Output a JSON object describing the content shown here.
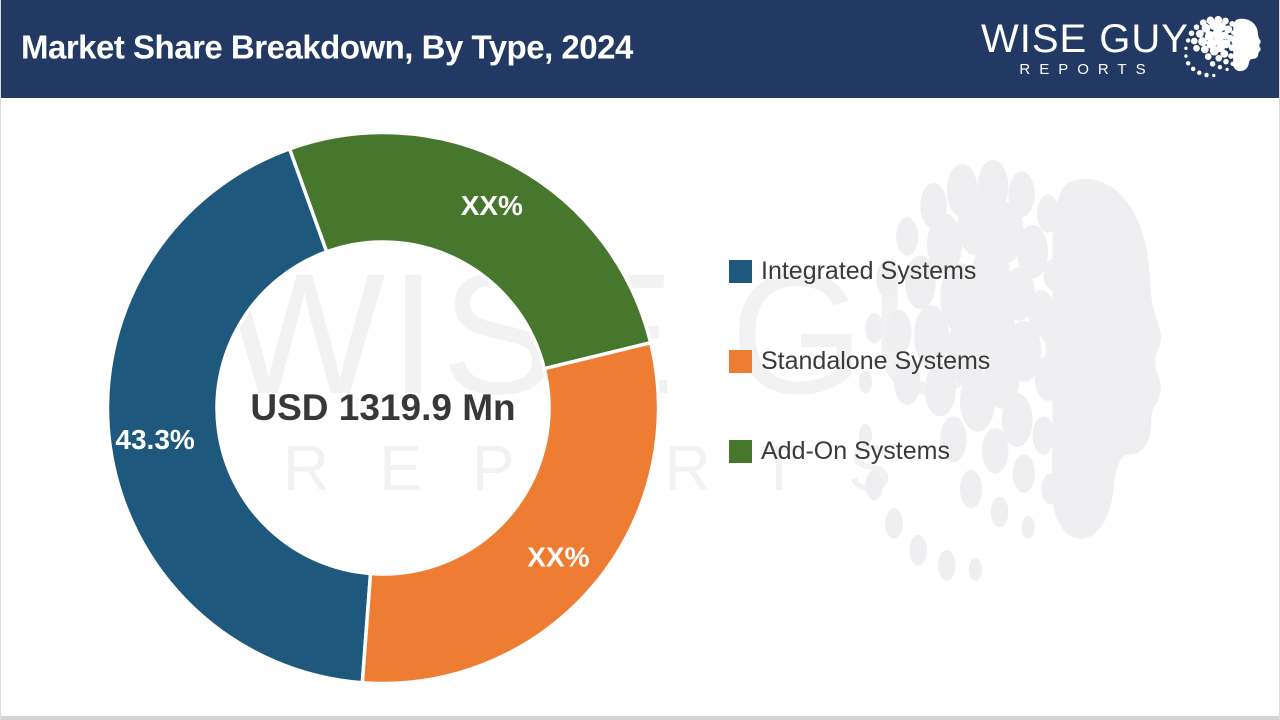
{
  "header": {
    "title": "Market Share Breakdown, By Type, 2024",
    "bg_color": "#223A63",
    "logo": {
      "line1": "WISE GUY",
      "line2": "REPORTS"
    }
  },
  "watermark": {
    "line1": "WISE GUY",
    "line2": "REPORTS"
  },
  "chart_data": {
    "type": "donut",
    "title": "Market Share Breakdown, By Type, 2024",
    "center_label": "USD 1319.9 Mn",
    "direction": "clockwise",
    "start_angle_deg": 184.3,
    "hole_ratio": 0.6,
    "legend_position": "right",
    "segments": [
      {
        "label": "Integrated Systems",
        "display": "43.3%",
        "value_pct": 43.3,
        "color": "#1F587D"
      },
      {
        "label": "Add-On Systems",
        "display": "XX%",
        "value_pct": 26.7,
        "color": "#47772C"
      },
      {
        "label": "Standalone Systems",
        "display": "XX%",
        "value_pct": 30.0,
        "color": "#EE7D33"
      }
    ]
  },
  "legend": {
    "items": [
      {
        "label": "Integrated Systems",
        "color": "#1F587D"
      },
      {
        "label": "Standalone Systems",
        "color": "#EE7D33"
      },
      {
        "label": "Add-On Systems",
        "color": "#47772C"
      }
    ]
  }
}
